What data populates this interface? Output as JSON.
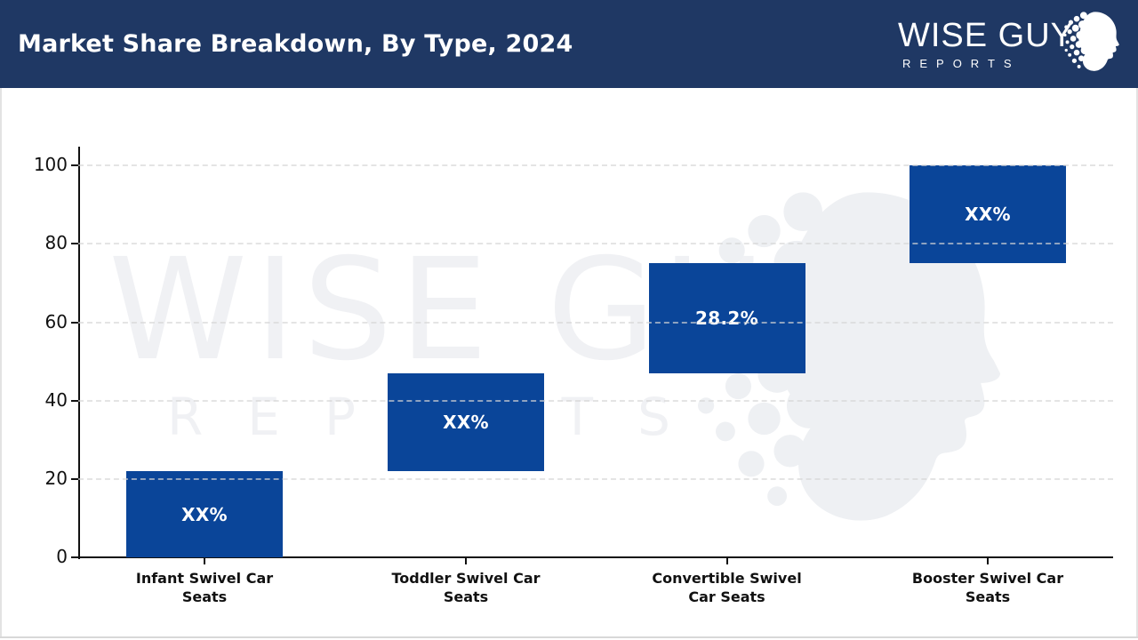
{
  "header": {
    "title": "Market Share Breakdown, By Type, 2024",
    "bg_color": "#1f3864",
    "logo": {
      "line1": "WISE GUY",
      "line2": "REPORTS"
    }
  },
  "watermark": {
    "line1": "WISE GU",
    "line2": "REPORTS"
  },
  "chart_data": {
    "type": "bar",
    "subtype": "floating-segment-waterfall",
    "title": "Market Share Breakdown, By Type, 2024",
    "categories": [
      "Infant Swivel Car Seats",
      "Toddler Swivel Car Seats",
      "Convertible Swivel Car Seats",
      "Booster Swivel Car Seats"
    ],
    "categories_lines": [
      [
        "Infant Swivel Car",
        "Seats"
      ],
      [
        "Toddler Swivel Car",
        "Seats"
      ],
      [
        "Convertible Swivel",
        "Car Seats"
      ],
      [
        "Booster Swivel Car",
        "Seats"
      ]
    ],
    "segments": [
      {
        "label": "XX%",
        "start": 0,
        "end": 22
      },
      {
        "label": "XX%",
        "start": 22,
        "end": 47
      },
      {
        "label": "28.2%",
        "start": 47,
        "end": 75.2
      },
      {
        "label": "XX%",
        "start": 75.2,
        "end": 100
      }
    ],
    "yticks": [
      0,
      20,
      40,
      60,
      80,
      100
    ],
    "ylim": [
      0,
      105
    ],
    "xlabel": "",
    "ylabel": "",
    "legend": "none",
    "grid": "horizontal-dashed",
    "bar_color": "#0a4599",
    "bar_label_color": "#ffffff",
    "axis_color": "#111111",
    "gridline_color": "#d6d6d6"
  }
}
